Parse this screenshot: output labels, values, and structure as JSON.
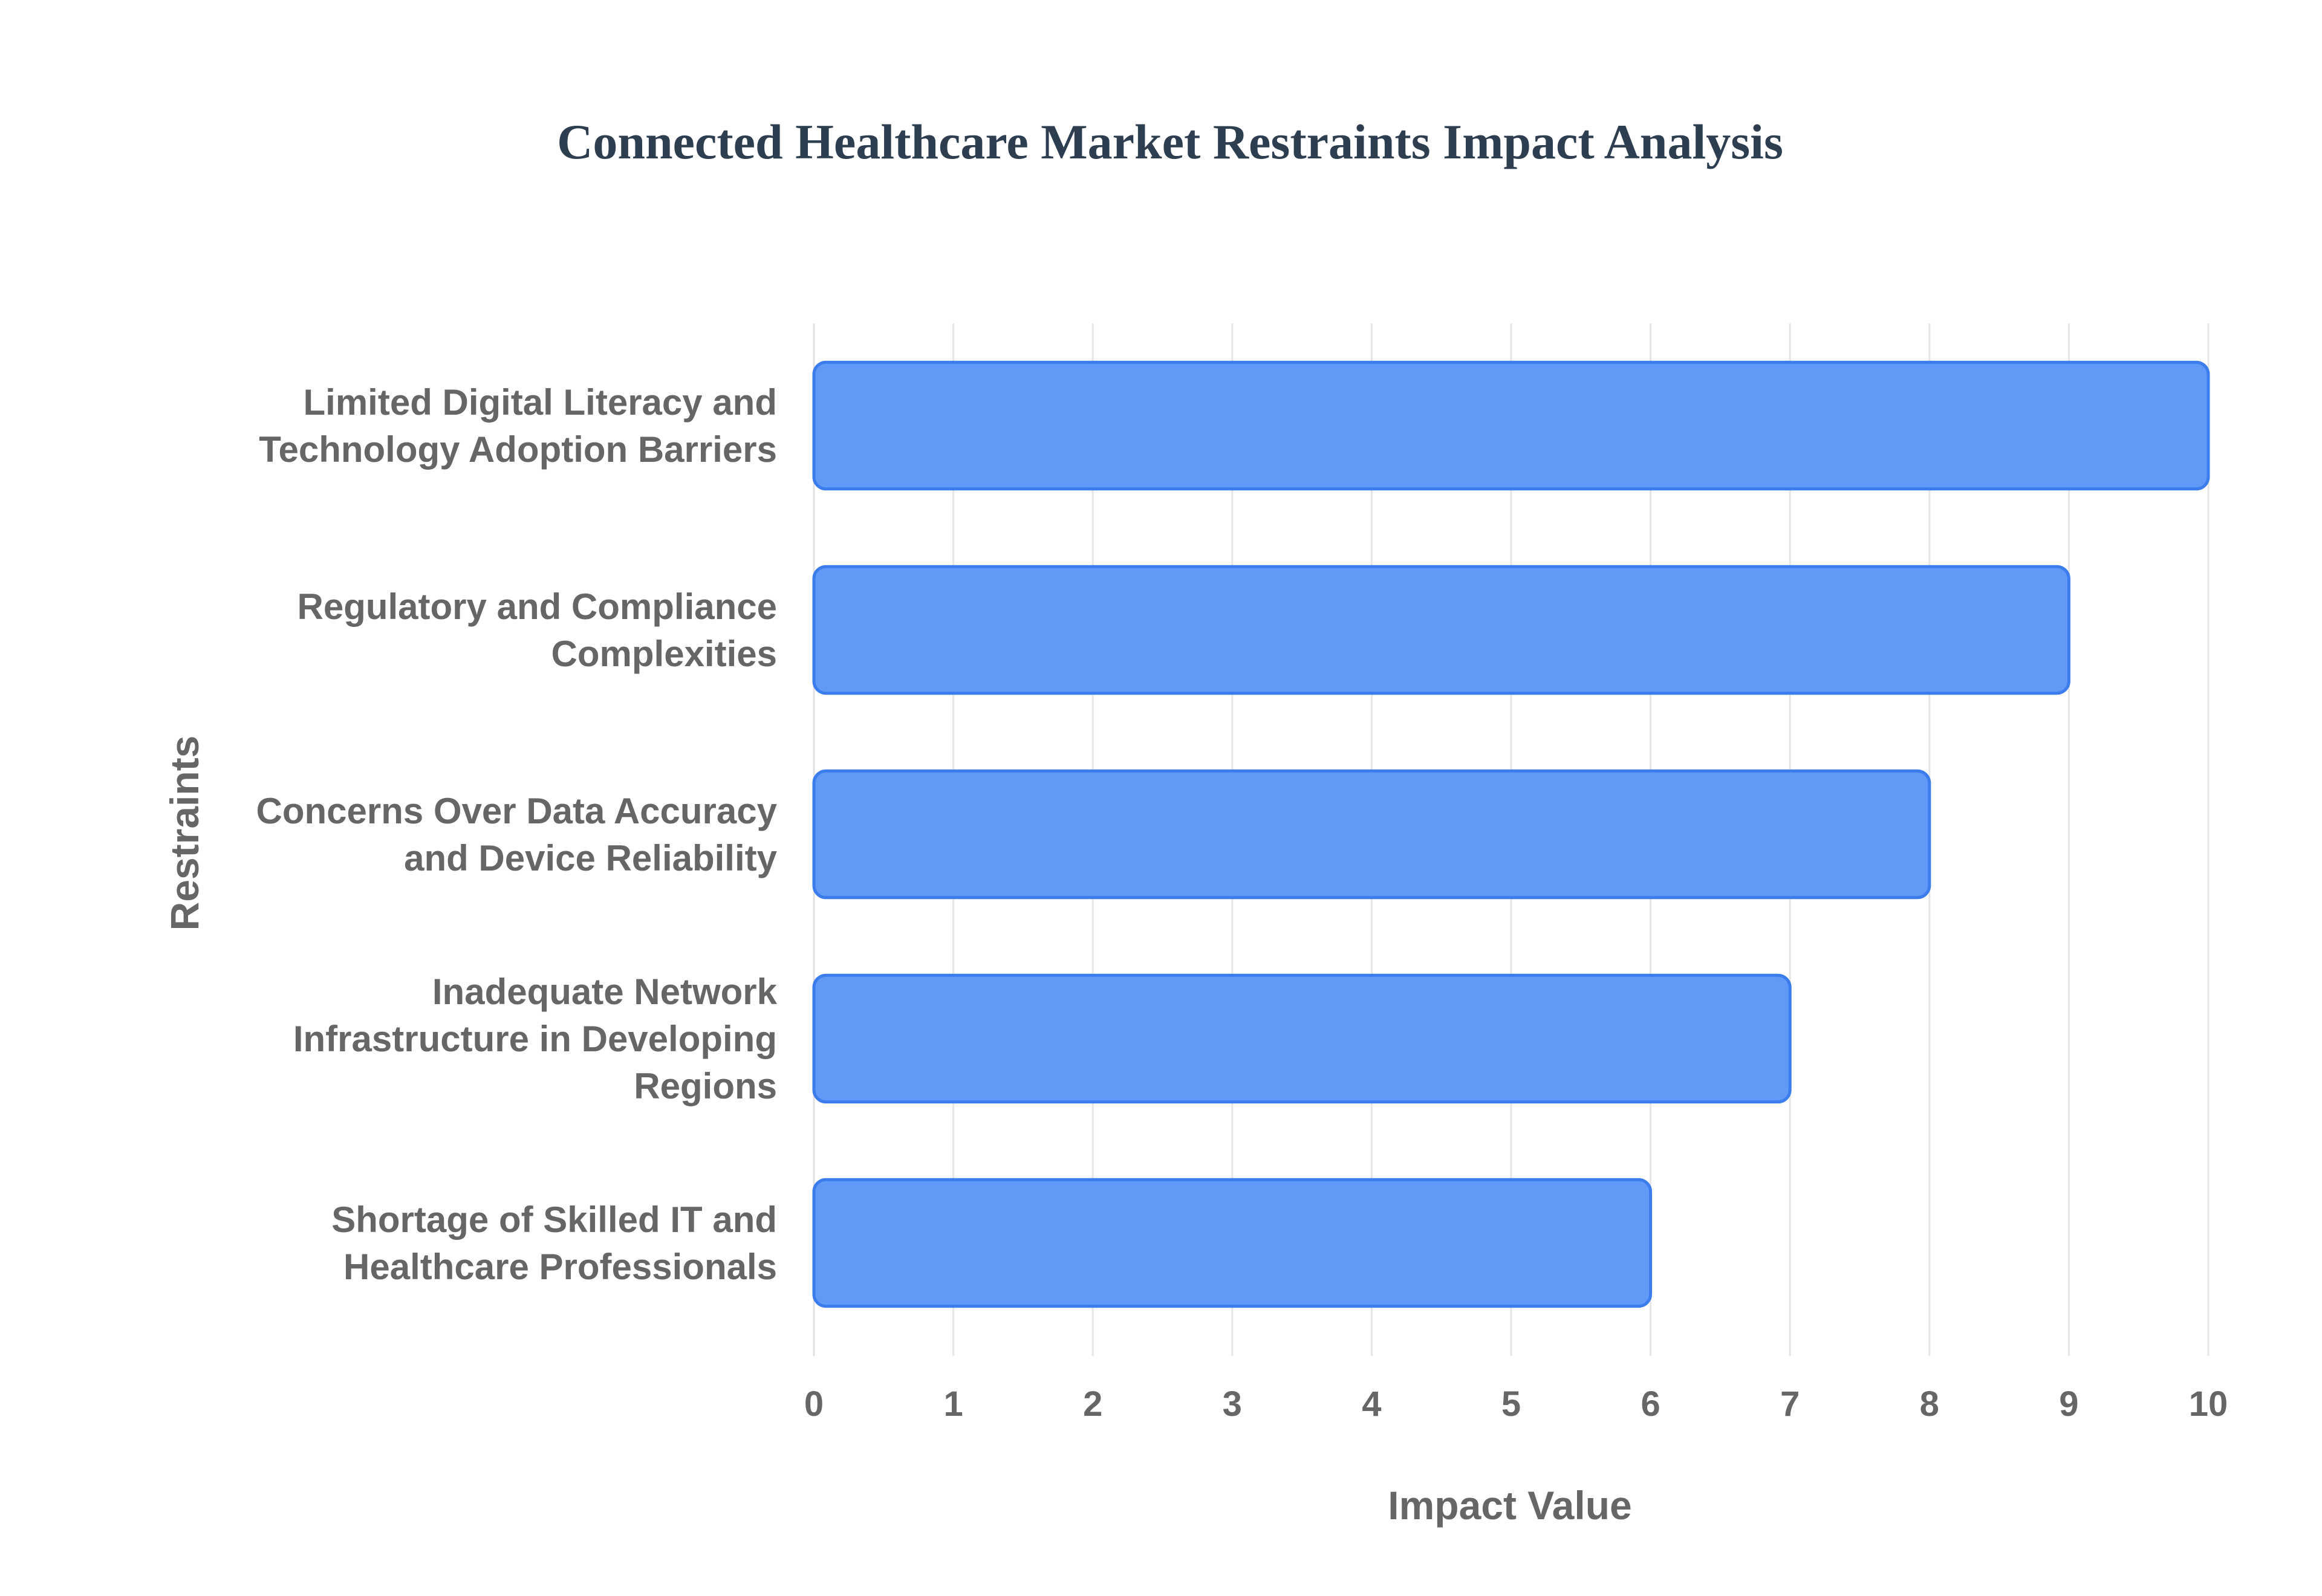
{
  "chart_data": {
    "type": "bar",
    "orientation": "horizontal",
    "title": "Connected Healthcare Market Restraints Impact Analysis",
    "xlabel": "Impact Value",
    "ylabel": "Restraints",
    "xlim": [
      0,
      10
    ],
    "x_ticks": [
      "0",
      "1",
      "2",
      "3",
      "4",
      "5",
      "6",
      "7",
      "8",
      "9",
      "10"
    ],
    "grid": true,
    "legend": "none",
    "categories": [
      [
        "Limited Digital Literacy and",
        "Technology Adoption Barriers"
      ],
      [
        "Regulatory and Compliance",
        "Complexities"
      ],
      [
        "Concerns Over Data Accuracy",
        "and Device Reliability"
      ],
      [
        "Inadequate Network",
        "Infrastructure in Developing",
        "Regions"
      ],
      [
        "Shortage of Skilled IT and",
        "Healthcare Professionals"
      ]
    ],
    "values": [
      10,
      9,
      8,
      7,
      6
    ],
    "colors": {
      "bar_fill": "#6199f7",
      "bar_stroke": "#3b7ded",
      "title": "#2c3e50",
      "text": "#666666",
      "grid": "#e5e5e5"
    }
  }
}
